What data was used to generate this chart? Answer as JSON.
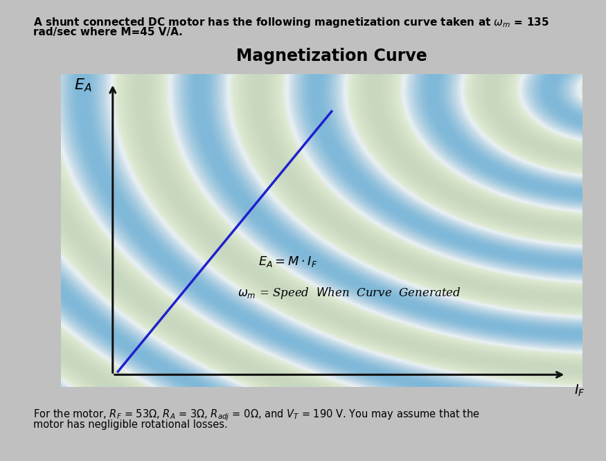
{
  "bg_color": "#c0c0c0",
  "chart_bg_color_light": "#e8eef5",
  "chart_bg_color_dark": "#b8c8d8",
  "title_text_line1": "A shunt connected DC motor has the following magnetization curve taken at ωm = 135",
  "title_text_line2": "rad/sec where M=45 V/A.",
  "chart_title": "Magnetization Curve",
  "ylabel": "E_A",
  "xlabel": "I_F",
  "annotation_line1": "$E_A = M \\cdot I_F$",
  "annotation_line2": "$\\omega_m$ = Speed  When  Curve  Generated",
  "footer_line1": "For the motor, R_F = 53Ω, R_A = 3Ω, R_adj = 0Ω, and V_T = 190 V. You may assume that the",
  "footer_line2": "motor has negligible rotational losses.",
  "line_color": "#2020cc",
  "axis_color": "#111111",
  "figsize": [
    8.75,
    6.66
  ],
  "dpi": 100
}
